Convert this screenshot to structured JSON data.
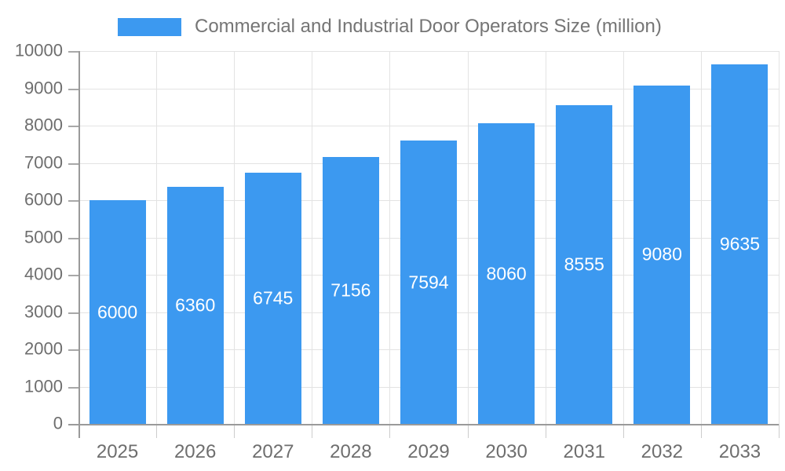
{
  "legend": {
    "label": "Commercial and Industrial Door Operators Size (million)"
  },
  "colors": {
    "bar": "#3C99F0",
    "grid": "#E3E3E3",
    "axis": "#9A9A9A",
    "y_tick": "#A8A8A8",
    "x_tick": "#CCCCCC",
    "title_text": "#757575",
    "axis_text": "#6E6E6E",
    "value_text": "#FFFFFF",
    "background": "#FFFFFF"
  },
  "chart_data": {
    "type": "bar",
    "title": "Commercial and Industrial Door Operators Size (million)",
    "series_name": "Commercial and Industrial Door Operators Size (million)",
    "categories": [
      "2025",
      "2026",
      "2027",
      "2028",
      "2029",
      "2030",
      "2031",
      "2032",
      "2033"
    ],
    "values": [
      6000,
      6360,
      6745,
      7156,
      7594,
      8060,
      8555,
      9080,
      9635
    ],
    "xlabel": "",
    "ylabel": "",
    "ylim": [
      0,
      10000
    ],
    "yticks": [
      0,
      1000,
      2000,
      3000,
      4000,
      5000,
      6000,
      7000,
      8000,
      9000,
      10000
    ],
    "grid": true,
    "legend_position": "top",
    "value_label_position": "inside-center"
  }
}
